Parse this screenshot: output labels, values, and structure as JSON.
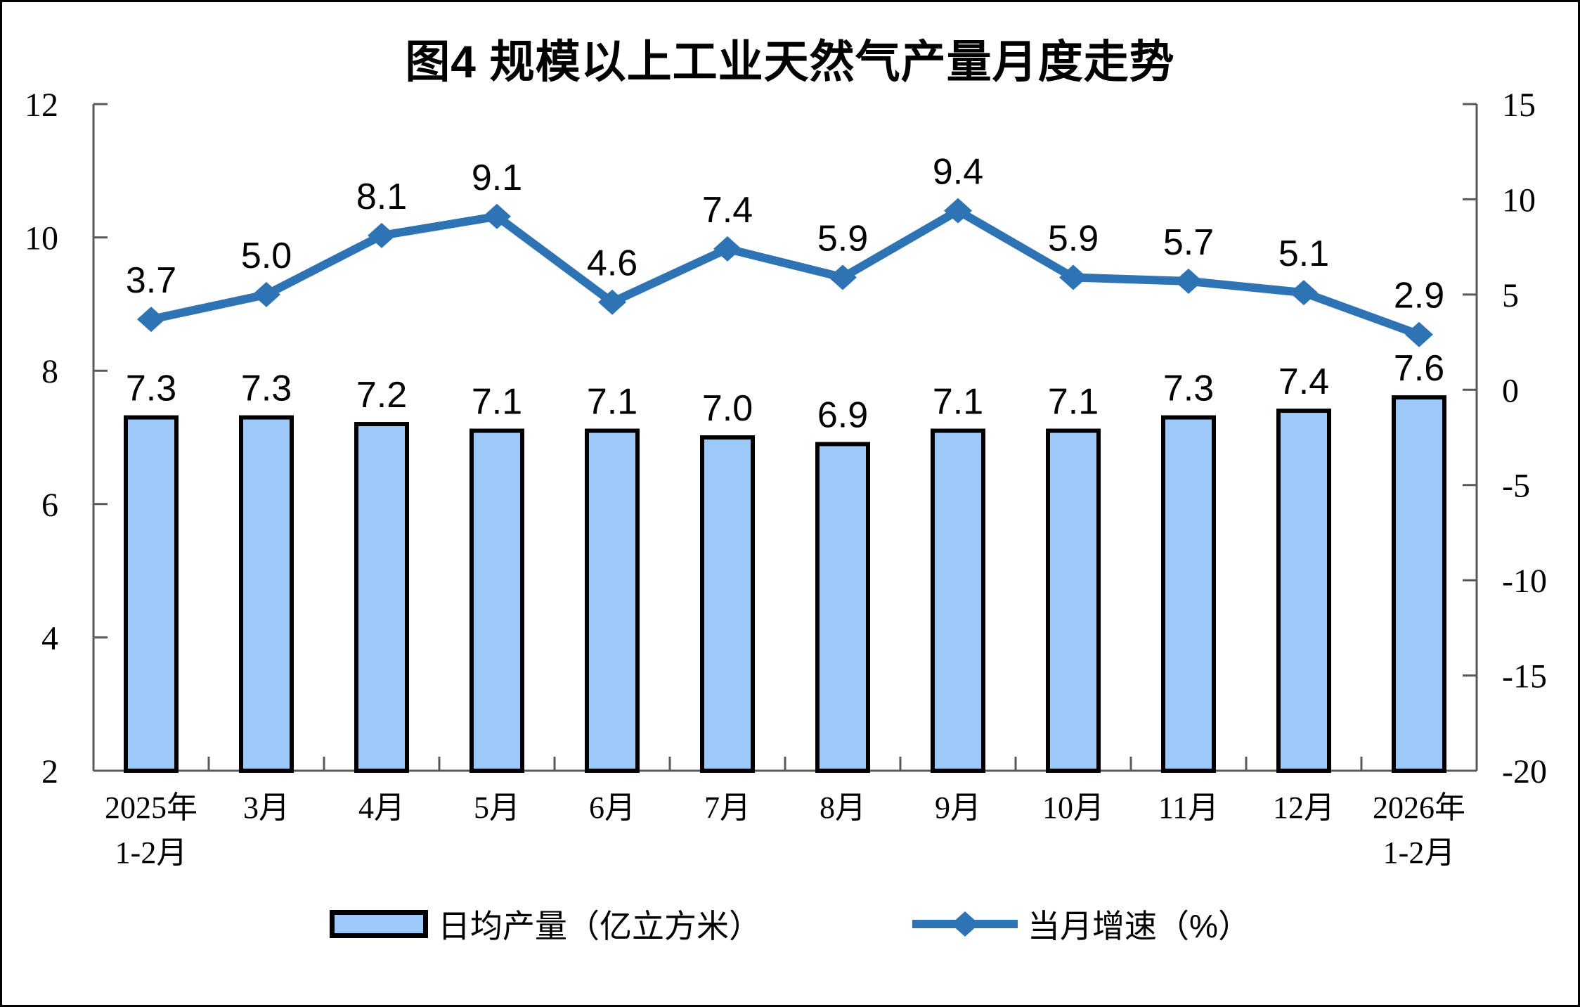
{
  "chart_data": {
    "type": "combo-bar-line",
    "title": "图4 规模以上工业天然气产量月度走势",
    "categories": [
      "2025年\n1-2月",
      "3月",
      "4月",
      "5月",
      "6月",
      "7月",
      "8月",
      "9月",
      "10月",
      "11月",
      "12月",
      "2026年\n1-2月"
    ],
    "series": [
      {
        "name": "日均产量（亿立方米）",
        "type": "bar",
        "axis": "left",
        "color": "#9CC9FA",
        "border_color": "#000000",
        "values": [
          7.3,
          7.3,
          7.2,
          7.1,
          7.1,
          7.0,
          6.9,
          7.1,
          7.1,
          7.3,
          7.4,
          7.6
        ]
      },
      {
        "name": "当月增速（%）",
        "type": "line",
        "axis": "right",
        "color": "#2E74B5",
        "marker": "diamond",
        "values": [
          3.7,
          5.0,
          8.1,
          9.1,
          4.6,
          7.4,
          5.9,
          9.4,
          5.9,
          5.7,
          5.1,
          2.9
        ]
      }
    ],
    "left_axis": {
      "min": 2,
      "max": 12,
      "step": 2,
      "tick_labels": [
        "2",
        "4",
        "6",
        "8",
        "10",
        "12"
      ]
    },
    "right_axis": {
      "min": -20,
      "max": 15,
      "step": 5,
      "tick_labels": [
        "-20",
        "-15",
        "-10",
        "-5",
        "0",
        "5",
        "10",
        "15"
      ]
    },
    "legend_position": "bottom",
    "grid": false,
    "data_label_decimals": 1,
    "axis_color": "#595959",
    "text_color": "#000000"
  }
}
